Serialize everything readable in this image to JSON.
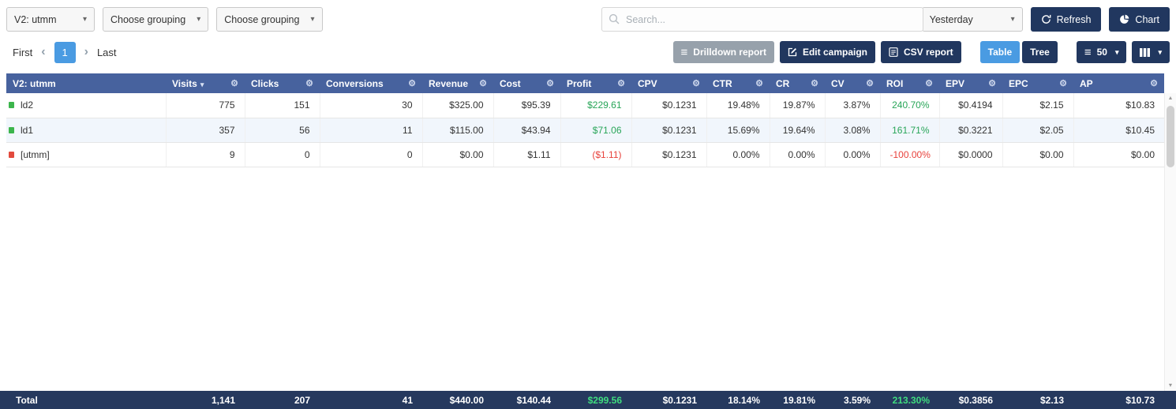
{
  "toolbar": {
    "campaign_select": "V2: utmm",
    "grouping_1": "Choose grouping",
    "grouping_2": "Choose grouping",
    "search_placeholder": "Search...",
    "date_select": "Yesterday",
    "refresh_label": "Refresh",
    "chart_label": "Chart"
  },
  "pagination": {
    "first_label": "First",
    "current_page": "1",
    "last_label": "Last"
  },
  "actions": {
    "drilldown_label": "Drilldown report",
    "edit_campaign_label": "Edit campaign",
    "csv_label": "CSV report",
    "table_label": "Table",
    "tree_label": "Tree",
    "rows_per_page": "50"
  },
  "icons": {
    "caret_down": "▾",
    "chevron_left": "‹",
    "chevron_right": "›",
    "gear": "⚙",
    "sort_desc": "▾",
    "hamburger": "≡",
    "scroll_up": "▲",
    "scroll_down": "▼"
  },
  "colors": {
    "header_bg": "#47629e",
    "footer_bg": "#26395e",
    "accent_blue": "#4a9be2",
    "navy_button": "#21375f",
    "gray_button": "#97a1ab",
    "positive_green": "#28a558",
    "negative_red": "#e8423c",
    "footer_green": "#3fdc7f",
    "status_green": "#3cb54c",
    "status_red": "#e24a3d"
  },
  "table": {
    "name_header": "V2: utmm",
    "columns": [
      "Visits",
      "Clicks",
      "Conversions",
      "Revenue",
      "Cost",
      "Profit",
      "CPV",
      "CTR",
      "CR",
      "CV",
      "ROI",
      "EPV",
      "EPC",
      "AP"
    ],
    "rows": [
      {
        "name": "ld2",
        "status": "green",
        "cells": [
          "775",
          "151",
          "30",
          "$325.00",
          "$95.39",
          "$229.61",
          "$0.1231",
          "19.48%",
          "19.87%",
          "3.87%",
          "240.70%",
          "$0.4194",
          "$2.15",
          "$10.83"
        ],
        "cell_colors": [
          "",
          "",
          "",
          "",
          "",
          "green",
          "",
          "",
          "",
          "",
          "green",
          "",
          "",
          ""
        ]
      },
      {
        "name": "ld1",
        "status": "green",
        "cells": [
          "357",
          "56",
          "11",
          "$115.00",
          "$43.94",
          "$71.06",
          "$0.1231",
          "15.69%",
          "19.64%",
          "3.08%",
          "161.71%",
          "$0.3221",
          "$2.05",
          "$10.45"
        ],
        "cell_colors": [
          "",
          "",
          "",
          "",
          "",
          "green",
          "",
          "",
          "",
          "",
          "green",
          "",
          "",
          ""
        ]
      },
      {
        "name": "[utmm]",
        "status": "red",
        "cells": [
          "9",
          "0",
          "0",
          "$0.00",
          "$1.11",
          "($1.11)",
          "$0.1231",
          "0.00%",
          "0.00%",
          "0.00%",
          "-100.00%",
          "$0.0000",
          "$0.00",
          "$0.00"
        ],
        "cell_colors": [
          "",
          "",
          "",
          "",
          "",
          "red",
          "",
          "",
          "",
          "",
          "red",
          "",
          "",
          ""
        ]
      }
    ],
    "total": {
      "label": "Total",
      "cells": [
        "1,141",
        "207",
        "41",
        "$440.00",
        "$140.44",
        "$299.56",
        "$0.1231",
        "18.14%",
        "19.81%",
        "3.59%",
        "213.30%",
        "$0.3856",
        "$2.13",
        "$10.73"
      ],
      "cell_colors": [
        "",
        "",
        "",
        "",
        "",
        "green",
        "",
        "",
        "",
        "",
        "green",
        "",
        "",
        ""
      ]
    }
  }
}
